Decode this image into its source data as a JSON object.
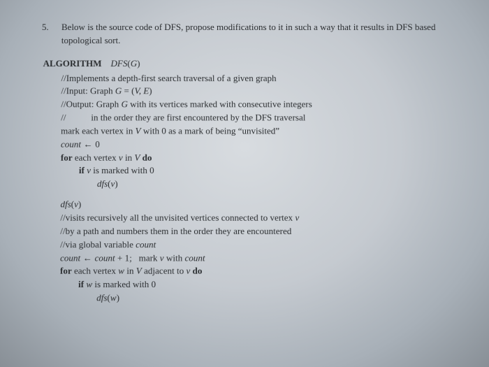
{
  "question": {
    "number": "5.",
    "text": "Below is the source code of DFS, propose modifications to it in such a way that it results in DFS based topological sort."
  },
  "alg": {
    "header_label": "ALGORITHM",
    "header_fn": "DFS",
    "header_arg": "G",
    "c1": "//Implements a depth-first search traversal of a given graph",
    "c2a": "//Input: Graph ",
    "c2b": "G",
    "c2c": " = (",
    "c2d": "V, E",
    "c2e": ")",
    "c3a": "//Output: Graph ",
    "c3b": "G",
    "c3c": " with its vertices marked with consecutive integers",
    "c4": "//           in the order they are first encountered by the DFS traversal",
    "m1a": "mark each vertex in ",
    "m1b": "V",
    "m1c": " with 0 as a mark of being “unvisited”",
    "cnt0a": "count",
    "arrow": " ← ",
    "cnt0b": "0",
    "for1a": "for",
    "for1b": " each vertex ",
    "for1c": "v",
    "for1d": " in ",
    "for1e": "V",
    "for1f": " do",
    "if1a": "if",
    "if1b": " v",
    "if1c": " is marked with 0",
    "call1a": "dfs",
    "call1b": "(",
    "call1c": "v",
    "call1d": ")",
    "sub_hdr_a": "dfs",
    "sub_hdr_b": "(",
    "sub_hdr_c": "v",
    "sub_hdr_d": ")",
    "sc1a": "//visits recursively all the unvisited vertices connected to vertex ",
    "sc1b": "v",
    "sc2": "//by a path and numbers them in the order they are encountered",
    "sc3a": "//via global variable ",
    "sc3b": "count",
    "inc_a": "count",
    "inc_b": "count",
    "inc_c": " + 1;   mark ",
    "inc_d": "v",
    "inc_e": " with ",
    "inc_f": "count",
    "for2a": "for",
    "for2b": " each vertex ",
    "for2c": "w",
    "for2d": " in ",
    "for2e": "V",
    "for2f": " adjacent to ",
    "for2g": "v",
    "for2h": " do",
    "if2a": "if",
    "if2b": " w",
    "if2c": " is marked with 0",
    "call2a": "dfs",
    "call2b": "(",
    "call2c": "w",
    "call2d": ")"
  }
}
